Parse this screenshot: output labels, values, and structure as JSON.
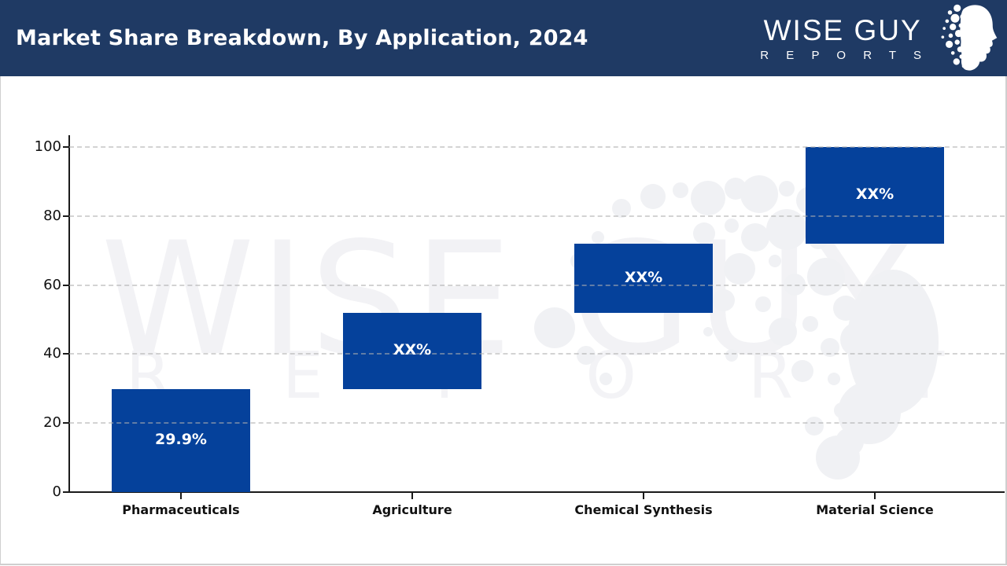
{
  "header": {
    "title": "Market Share Breakdown, By Application, 2024",
    "logo": {
      "name": "WISE GUY",
      "tagline": "R E P O R T S"
    }
  },
  "watermark": {
    "line1": "WISE GUY",
    "line2": "R E P O R T S"
  },
  "chart_data": {
    "type": "bar",
    "subtype": "waterfall-floating-bars",
    "title": "Market Share Breakdown, By Application, 2024",
    "categories": [
      "Pharmaceuticals",
      "Agriculture",
      "Chemical Synthesis",
      "Material Science"
    ],
    "segments": [
      {
        "category": "Pharmaceuticals",
        "start": 0,
        "end": 29.9,
        "label": "29.9%"
      },
      {
        "category": "Agriculture",
        "start": 29.9,
        "end": 52,
        "label": "XX%"
      },
      {
        "category": "Chemical Synthesis",
        "start": 52,
        "end": 72,
        "label": "XX%"
      },
      {
        "category": "Material Science",
        "start": 72,
        "end": 100,
        "label": "XX%"
      }
    ],
    "xlabel": "",
    "ylabel": "",
    "ylim": [
      0,
      100
    ],
    "yticks": [
      0,
      20,
      40,
      60,
      80,
      100
    ],
    "grid": "horizontal-dashed",
    "legend": "none",
    "bar_color": "#05419b",
    "bar_label_color": "#ffffff",
    "axis_color": "#1a1a1a",
    "header_color": "#1f3a64"
  }
}
